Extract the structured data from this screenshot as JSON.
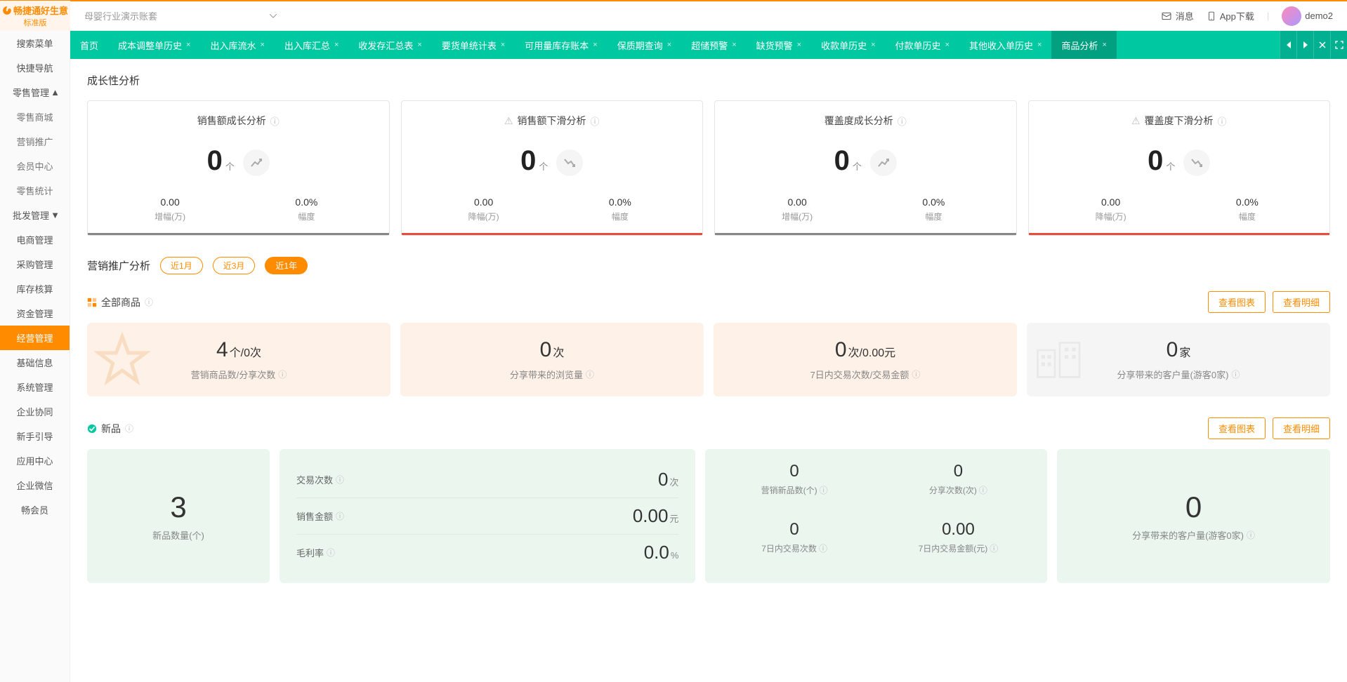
{
  "top": {
    "logo_main": "畅捷通好生意",
    "logo_sub": "标准版",
    "account": "母婴行业演示账套",
    "messages": "消息",
    "app_download": "App下载",
    "username": "demo2"
  },
  "sidebar": {
    "search": "搜索菜单",
    "quick_nav": "快捷导航",
    "retail_mgmt": "零售管理",
    "retail_mall": "零售商城",
    "marketing": "营销推广",
    "member_center": "会员中心",
    "retail_stats": "零售统计",
    "wholesale": "批发管理",
    "ecommerce": "电商管理",
    "purchase": "采购管理",
    "inventory": "库存核算",
    "funds": "资金管理",
    "business": "经营管理",
    "basic_info": "基础信息",
    "system": "系统管理",
    "enterprise": "企业协同",
    "newbie": "新手引导",
    "app_center": "应用中心",
    "wecom": "企业微信",
    "member": "畅会员"
  },
  "tabs": [
    {
      "label": "首页",
      "closable": false
    },
    {
      "label": "成本调整单历史",
      "closable": true
    },
    {
      "label": "出入库流水",
      "closable": true
    },
    {
      "label": "出入库汇总",
      "closable": true
    },
    {
      "label": "收发存汇总表",
      "closable": true
    },
    {
      "label": "要货单统计表",
      "closable": true
    },
    {
      "label": "可用量库存账本",
      "closable": true
    },
    {
      "label": "保质期查询",
      "closable": true
    },
    {
      "label": "超储预警",
      "closable": true
    },
    {
      "label": "缺货预警",
      "closable": true
    },
    {
      "label": "收款单历史",
      "closable": true
    },
    {
      "label": "付款单历史",
      "closable": true
    },
    {
      "label": "其他收入单历史",
      "closable": true
    },
    {
      "label": "商品分析",
      "closable": true,
      "active": true
    }
  ],
  "growth": {
    "section_title": "成长性分析",
    "cards": [
      {
        "title": "销售额成长分析",
        "warn": false,
        "value": "0",
        "unit": "个",
        "trend": "up",
        "foot1_val": "0.00",
        "foot1_label": "增幅(万)",
        "foot2_val": "0.0%",
        "foot2_label": "幅度",
        "bar": "neutral"
      },
      {
        "title": "销售额下滑分析",
        "warn": true,
        "value": "0",
        "unit": "个",
        "trend": "down",
        "foot1_val": "0.00",
        "foot1_label": "降幅(万)",
        "foot2_val": "0.0%",
        "foot2_label": "幅度",
        "bar": "bad"
      },
      {
        "title": "覆盖度成长分析",
        "warn": false,
        "value": "0",
        "unit": "个",
        "trend": "up",
        "foot1_val": "0.00",
        "foot1_label": "增幅(万)",
        "foot2_val": "0.0%",
        "foot2_label": "幅度",
        "bar": "neutral"
      },
      {
        "title": "覆盖度下滑分析",
        "warn": true,
        "value": "0",
        "unit": "个",
        "trend": "down",
        "foot1_val": "0.00",
        "foot1_label": "降幅(万)",
        "foot2_val": "0.0%",
        "foot2_label": "幅度",
        "bar": "bad"
      }
    ]
  },
  "marketing": {
    "section_title": "营销推广分析",
    "pills": {
      "m1": "近1月",
      "m3": "近3月",
      "y1": "近1年"
    }
  },
  "all_products": {
    "title": "全部商品",
    "view_chart": "查看图表",
    "view_detail": "查看明细",
    "cards": [
      {
        "big": "4",
        "mid": "个/0次",
        "label": "营销商品数/分享次数",
        "color": "orange",
        "deco": "star"
      },
      {
        "big": "0",
        "mid": "次",
        "label": "分享带来的浏览量",
        "color": "orange"
      },
      {
        "big": "0",
        "mid": "次/0.00元",
        "label": "7日内交易次数/交易金额",
        "color": "orange"
      },
      {
        "big": "0",
        "mid": "家",
        "label": "分享带来的客户量(游客0家)",
        "color": "gray",
        "deco": "building"
      }
    ]
  },
  "new_products": {
    "title": "新品",
    "view_chart": "查看图表",
    "view_detail": "查看明细",
    "left": {
      "value": "3",
      "label": "新品数量(个)"
    },
    "mid": [
      {
        "label": "交易次数",
        "big": "0",
        "unit": "次"
      },
      {
        "label": "销售金额",
        "big": "0.00",
        "unit": "元"
      },
      {
        "label": "毛利率",
        "big": "0.0",
        "unit": "%"
      }
    ],
    "twin": [
      {
        "val": "0",
        "label": "营销新品数(个)"
      },
      {
        "val": "0",
        "label": "分享次数(次)"
      },
      {
        "val": "0",
        "label": "7日内交易次数"
      },
      {
        "val": "0.00",
        "label": "7日内交易金额(元)"
      }
    ],
    "right": {
      "value": "0",
      "label": "分享带来的客户量(游客0家)"
    }
  }
}
